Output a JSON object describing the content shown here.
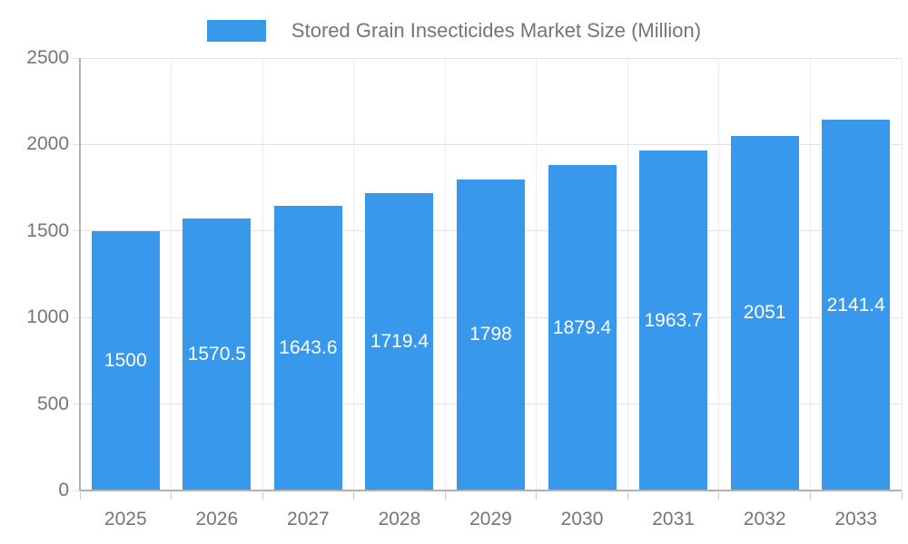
{
  "chart_data": {
    "type": "bar",
    "title": "Stored Grain Insecticides Market Size (Million)",
    "categories": [
      "2025",
      "2026",
      "2027",
      "2028",
      "2029",
      "2030",
      "2031",
      "2032",
      "2033"
    ],
    "values": [
      1500,
      1570.5,
      1643.6,
      1719.4,
      1798,
      1879.4,
      1963.7,
      2051,
      2141.4
    ],
    "value_labels": [
      "1500",
      "1570.5",
      "1643.6",
      "1719.4",
      "1798",
      "1879.4",
      "1963.7",
      "2051",
      "2141.4"
    ],
    "xlabel": "",
    "ylabel": "",
    "ylim": [
      0,
      2500
    ],
    "yticks": [
      0,
      500,
      1000,
      1500,
      2000,
      2500
    ],
    "grid": true,
    "legend_position": "top-center",
    "series_name": "Stored Grain Insecticides Market Size (Million)"
  },
  "colors": {
    "bar": "#3899EC",
    "bar_label_text": "#ffffff",
    "axis_line": "#b0b0b0",
    "gridline_horizontal": "#e2e2e2",
    "gridline_vertical": "#ececec",
    "tick_mark": "#c6c6c6",
    "tick_text": "#757575",
    "title_text": "#757575",
    "background": "#ffffff"
  }
}
